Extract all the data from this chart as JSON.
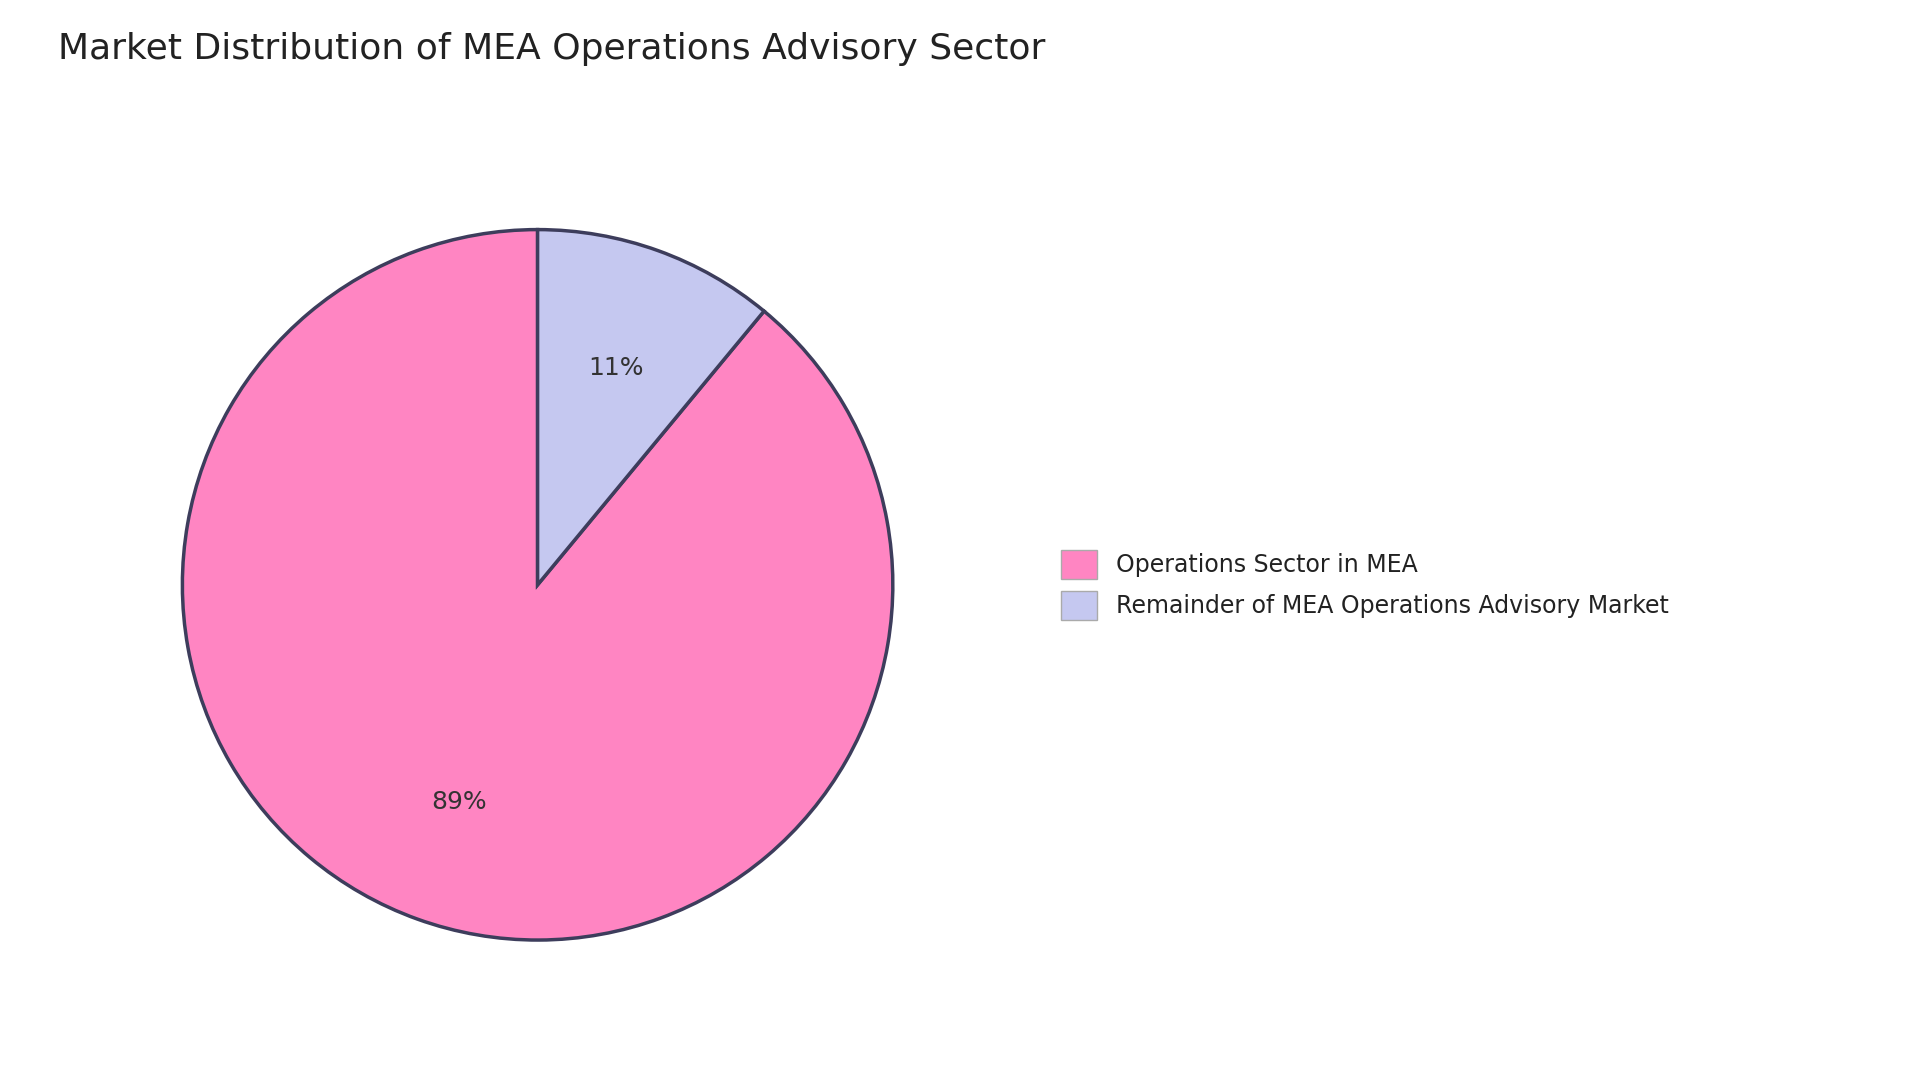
{
  "title": "Market Distribution of MEA Operations Advisory Sector",
  "title_fontsize": 26,
  "title_color": "#222222",
  "slices": [
    89,
    11
  ],
  "labels": [
    "Operations Sector in MEA",
    "Remainder of MEA Operations Advisory Market"
  ],
  "colors": [
    "#FF85C2",
    "#C5C8F0"
  ],
  "edge_color": "#3d3d5c",
  "edge_width": 2.5,
  "autopct_fontsize": 18,
  "autopct_color": "#333333",
  "legend_fontsize": 17,
  "start_angle": 90,
  "background_color": "#ffffff"
}
